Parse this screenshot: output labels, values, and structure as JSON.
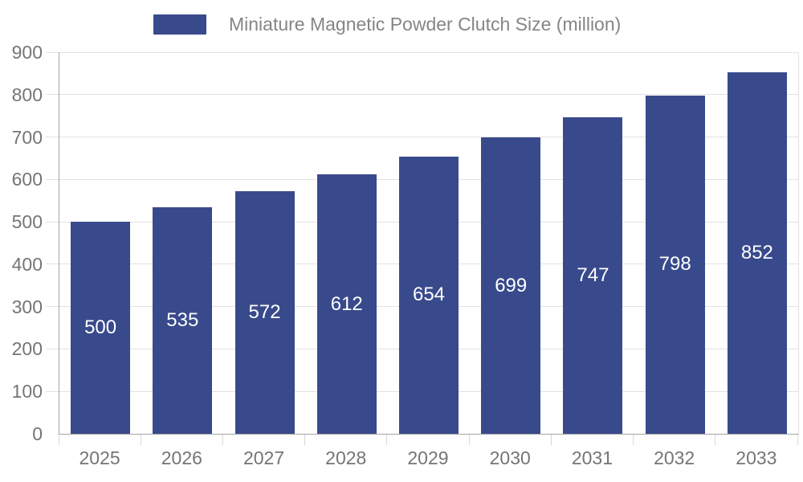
{
  "chart_data": {
    "type": "bar",
    "title": "Miniature Magnetic Powder Clutch Size (million)",
    "legend": {
      "label": "Miniature Magnetic Powder Clutch Size (million)",
      "position": "top"
    },
    "categories": [
      "2025",
      "2026",
      "2027",
      "2028",
      "2029",
      "2030",
      "2031",
      "2032",
      "2033"
    ],
    "series": [
      {
        "name": "Miniature Magnetic Powder Clutch Size (million)",
        "values": [
          500,
          535,
          572,
          612,
          654,
          699,
          747,
          798,
          852
        ]
      }
    ],
    "value_labels_shown": true,
    "xlabel": "",
    "ylabel": "",
    "ylim": [
      0,
      900
    ],
    "yticks": [
      0,
      100,
      200,
      300,
      400,
      500,
      600,
      700,
      800,
      900
    ],
    "grid": true,
    "colors": {
      "bar": "#394A8C",
      "axis_text": "#757575",
      "legend_text": "#858585",
      "grid_line": "#E2E2E2",
      "tick_line": "#D9D9D9",
      "axis_line": "#A6A6A6",
      "value_label": "#FFFFFF",
      "background": "#FFFFFF"
    }
  }
}
